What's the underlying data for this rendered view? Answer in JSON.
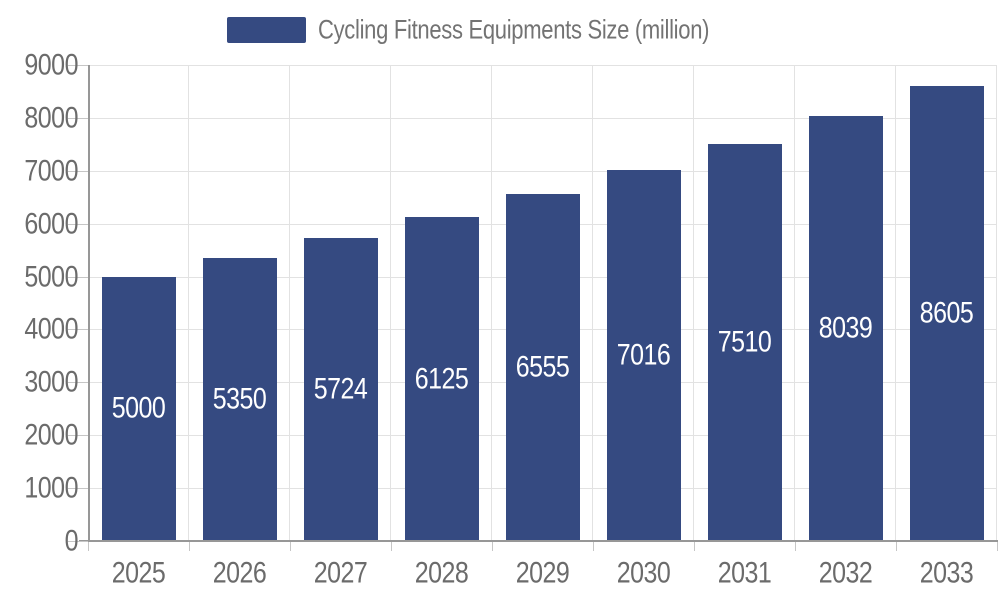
{
  "chart_data": {
    "type": "bar",
    "title": "Cycling Fitness Equipments Size (million)",
    "categories": [
      "2025",
      "2026",
      "2027",
      "2028",
      "2029",
      "2030",
      "2031",
      "2032",
      "2033"
    ],
    "series": [
      {
        "name": "Cycling Fitness Equipments Size (million)",
        "values": [
          5000,
          5350,
          5724,
          6125,
          6555,
          7016,
          7510,
          8039,
          8605
        ],
        "color": "#354a81"
      }
    ],
    "value_labels": [
      "5000",
      "5350",
      "5724",
      "6125",
      "6555",
      "7016",
      "7510",
      "8039",
      "8605"
    ],
    "xlabel": "",
    "ylabel": "",
    "ylim": [
      0,
      9000
    ],
    "y_ticks": [
      0,
      1000,
      2000,
      3000,
      4000,
      5000,
      6000,
      7000,
      8000,
      9000
    ],
    "grid": true,
    "legend_position": "top"
  },
  "legend": {
    "label": "Cycling Fitness Equipments Size (million)",
    "swatch_color": "#354a81"
  },
  "colors": {
    "bar": "#354a81",
    "bar_value_text": "#ffffff",
    "axis_label": "#6b6b6b",
    "legend_text": "#737373",
    "gridline": "#e2e2e2",
    "axis_line": "#979797",
    "tick": "#c6c6c6",
    "background": "#ffffff"
  }
}
